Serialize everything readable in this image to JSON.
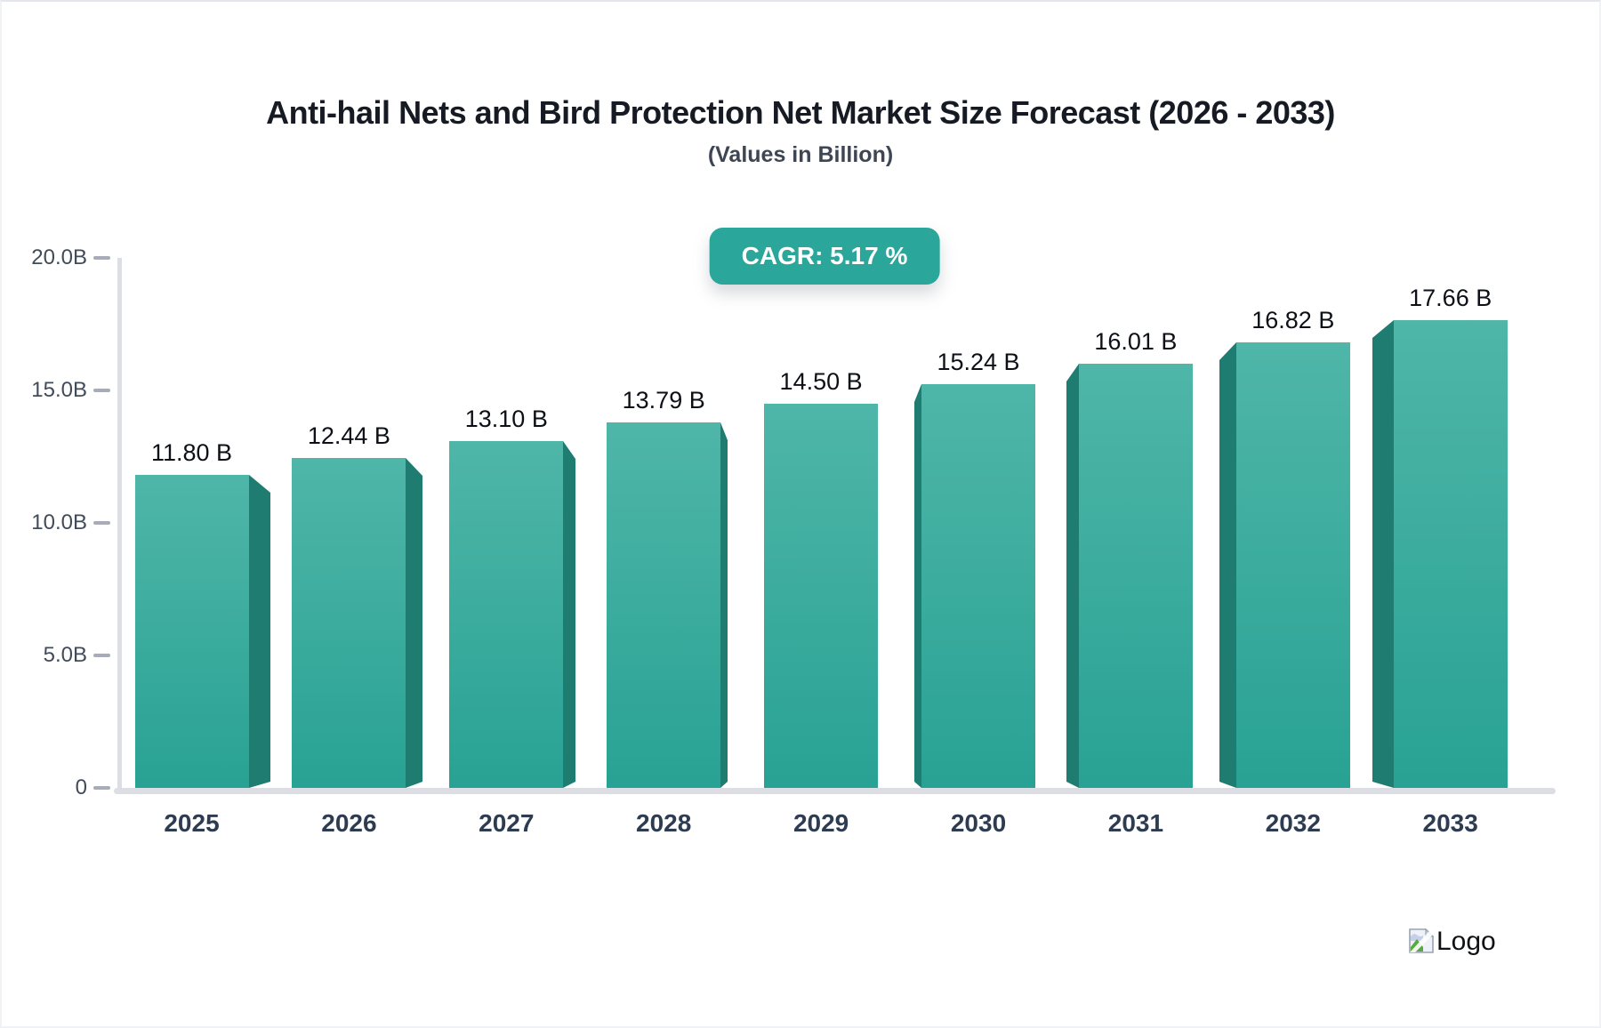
{
  "header": {
    "title": "Anti-hail Nets and Bird Protection Net Market Size Forecast (2026 - 2033)",
    "subtitle": "(Values in Billion)",
    "cagr_badge_label": "CAGR: 5.17 %"
  },
  "chart_data": {
    "type": "bar",
    "title": "Anti-hail Nets and Bird Protection Net Market Size Forecast (2026 - 2033)",
    "subtitle": "(Values in Billion)",
    "x": [
      "2025",
      "2026",
      "2027",
      "2028",
      "2029",
      "2030",
      "2031",
      "2032",
      "2033"
    ],
    "values": [
      11.8,
      12.44,
      13.1,
      13.79,
      14.5,
      15.24,
      16.01,
      16.82,
      17.66
    ],
    "bar_labels": [
      "11.80 B",
      "12.44 B",
      "13.10 B",
      "13.79 B",
      "14.50 B",
      "15.24 B",
      "16.01 B",
      "16.82 B",
      "17.66 B"
    ],
    "cagr_percent": 5.17,
    "ylim": [
      0,
      20
    ],
    "yticks": [
      {
        "label": "20.0B",
        "value": 20
      },
      {
        "label": "15.0B",
        "value": 15
      },
      {
        "label": "10.0B",
        "value": 10
      },
      {
        "label": "5.0B",
        "value": 5
      },
      {
        "label": "0",
        "value": 0
      }
    ],
    "grid": false,
    "legend": "none",
    "colors": {
      "bar_front_top": "#4fb6a8",
      "bar_front_bottom": "#28a294",
      "bar_side": "#1e7c71",
      "badge_bg": "#2aa79a",
      "axis": "#dcdee3",
      "tick": "#a6adb8"
    }
  },
  "footer": {
    "logo_alt_text": "Logo"
  }
}
